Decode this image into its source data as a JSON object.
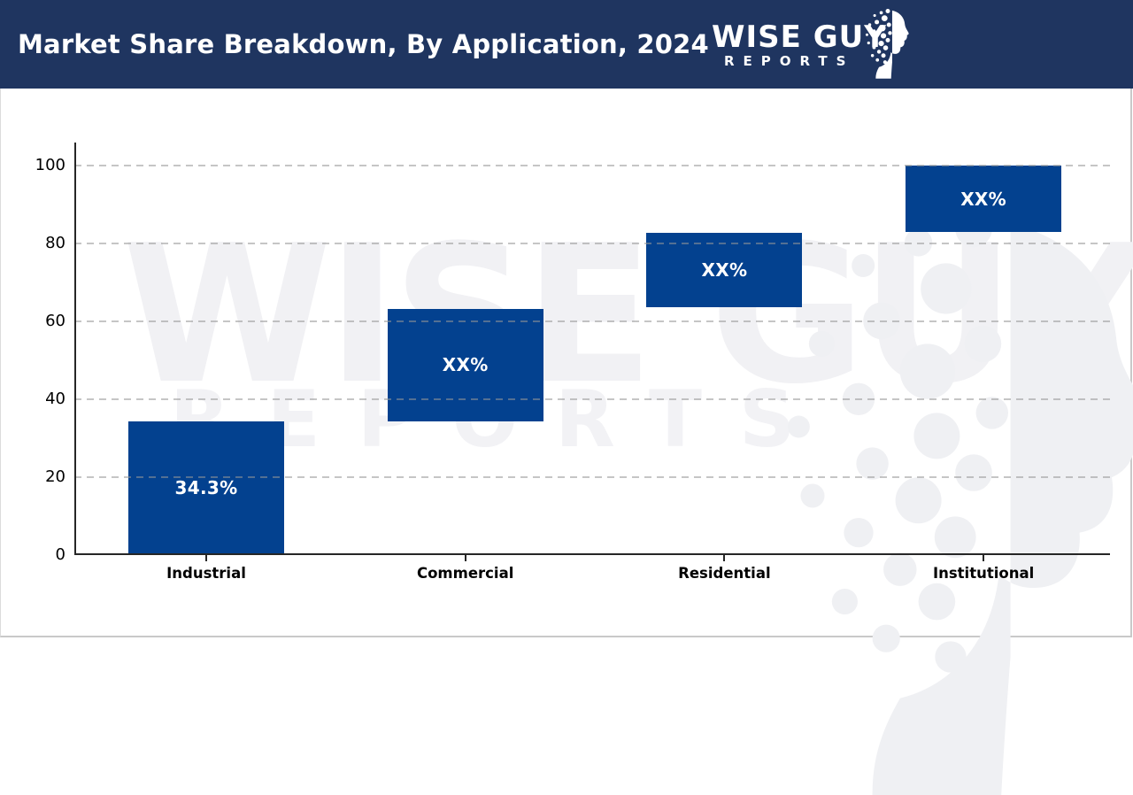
{
  "header": {
    "title": "Market Share Breakdown, By Application, 2024",
    "bg_color": "#1f3560",
    "logo": {
      "wordmark": "WISE GUY",
      "subtext": "REPORTS"
    }
  },
  "watermark": {
    "line1": "WISE GUY",
    "line2": "REPORTS"
  },
  "chart_data": {
    "type": "bar",
    "subtype": "waterfall-floating-bars",
    "title": "Market Share Breakdown, By Application, 2024",
    "categories": [
      "Industrial",
      "Commercial",
      "Residential",
      "Institutional"
    ],
    "segments": [
      {
        "category": "Industrial",
        "start": 0,
        "end": 34.3,
        "label": "34.3%"
      },
      {
        "category": "Commercial",
        "start": 34.3,
        "end": 63.2,
        "label": "XX%"
      },
      {
        "category": "Residential",
        "start": 63.5,
        "end": 82.7,
        "label": "XX%"
      },
      {
        "category": "Institutional",
        "start": 82.8,
        "end": 100,
        "label": "XX%"
      }
    ],
    "values_segment_sizes": [
      34.3,
      28.9,
      19.2,
      17.2
    ],
    "ylim": [
      0,
      106
    ],
    "yticks": [
      0,
      20,
      40,
      60,
      80,
      100
    ],
    "xlabel": "",
    "ylabel": "",
    "grid": "horizontal dashed, drawn over bars",
    "legend": "none",
    "bar_color": "#03418f",
    "grid_color": "#c9c9c9",
    "axis_color": "#262626",
    "label_color_inside_bars": "#ffffff"
  }
}
